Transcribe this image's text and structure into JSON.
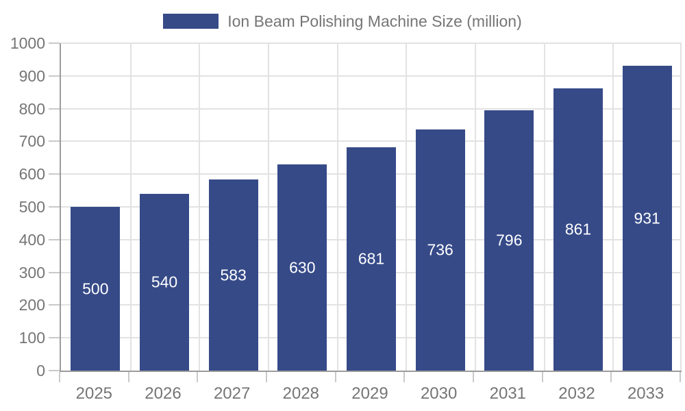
{
  "chart_data": {
    "type": "bar",
    "title": "",
    "legend": {
      "label": "Ion Beam Polishing Machine Size (million)",
      "position": "top"
    },
    "categories": [
      "2025",
      "2026",
      "2027",
      "2028",
      "2029",
      "2030",
      "2031",
      "2032",
      "2033"
    ],
    "series": [
      {
        "name": "Ion Beam Polishing Machine Size (million)",
        "values": [
          500,
          540,
          583,
          630,
          681,
          736,
          796,
          861,
          931
        ]
      }
    ],
    "xlabel": "",
    "ylabel": "",
    "ylim": [
      0,
      1000
    ],
    "ytick_step": 100,
    "ytick_labels": [
      "0",
      "100",
      "200",
      "300",
      "400",
      "500",
      "600",
      "700",
      "800",
      "900",
      "1000"
    ],
    "grid": true,
    "legend_position": "top",
    "colors": {
      "bar": "#364a88",
      "bar_label": "#ffffff",
      "axis": "#9b9b9b",
      "grid": "#e2e2e2",
      "tick": "#c9c9c9",
      "tick_label": "#757575",
      "background": "#ffffff"
    }
  }
}
